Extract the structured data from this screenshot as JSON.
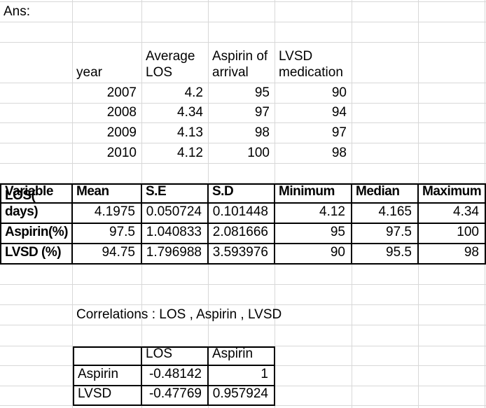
{
  "colors": {
    "background": "#ffffff",
    "gridline": "#d8d8d8",
    "table_border": "#000000",
    "text": "#000000"
  },
  "ans_label": "Ans:",
  "yearly_table": {
    "headers": {
      "year": "year",
      "avg_los": "Average\nLOS",
      "aspirin": "Aspirin of\narrival",
      "lvsd": "LVSD\nmedication"
    },
    "rows": [
      {
        "year": "2007",
        "avg_los": "4.2",
        "aspirin": "95",
        "lvsd": "90"
      },
      {
        "year": "2008",
        "avg_los": "4.34",
        "aspirin": "97",
        "lvsd": "94"
      },
      {
        "year": "2009",
        "avg_los": "4.13",
        "aspirin": "98",
        "lvsd": "97"
      },
      {
        "year": "2010",
        "avg_los": "4.12",
        "aspirin": "100",
        "lvsd": "98"
      }
    ]
  },
  "stats_table": {
    "headers": [
      "Variable",
      "Mean",
      "S.E",
      "S.D",
      "Minimum",
      "Median",
      "Maximum"
    ],
    "rows": [
      {
        "label": "LOS( days)",
        "mean": "4.1975",
        "se": "0.050724",
        "sd": "0.101448",
        "min": "4.12",
        "median": "4.165",
        "max": "4.34"
      },
      {
        "label": "Aspirin(%)",
        "mean": "97.5",
        "se": "1.040833",
        "sd": "2.081666",
        "min": "95",
        "median": "97.5",
        "max": "100"
      },
      {
        "label": "LVSD (%)",
        "mean": "94.75",
        "se": "1.796988",
        "sd": "3.593976",
        "min": "90",
        "median": "95.5",
        "max": "98"
      }
    ]
  },
  "correlation_section": {
    "title": "Correlations : LOS , Aspirin , LVSD",
    "table": {
      "headers": [
        "LOS",
        "Aspirin"
      ],
      "rows": [
        {
          "label": "Aspirin",
          "los": "-0.48142",
          "aspirin": "1"
        },
        {
          "label": "LVSD",
          "los": "-0.47769",
          "aspirin": "0.957924"
        }
      ]
    }
  }
}
